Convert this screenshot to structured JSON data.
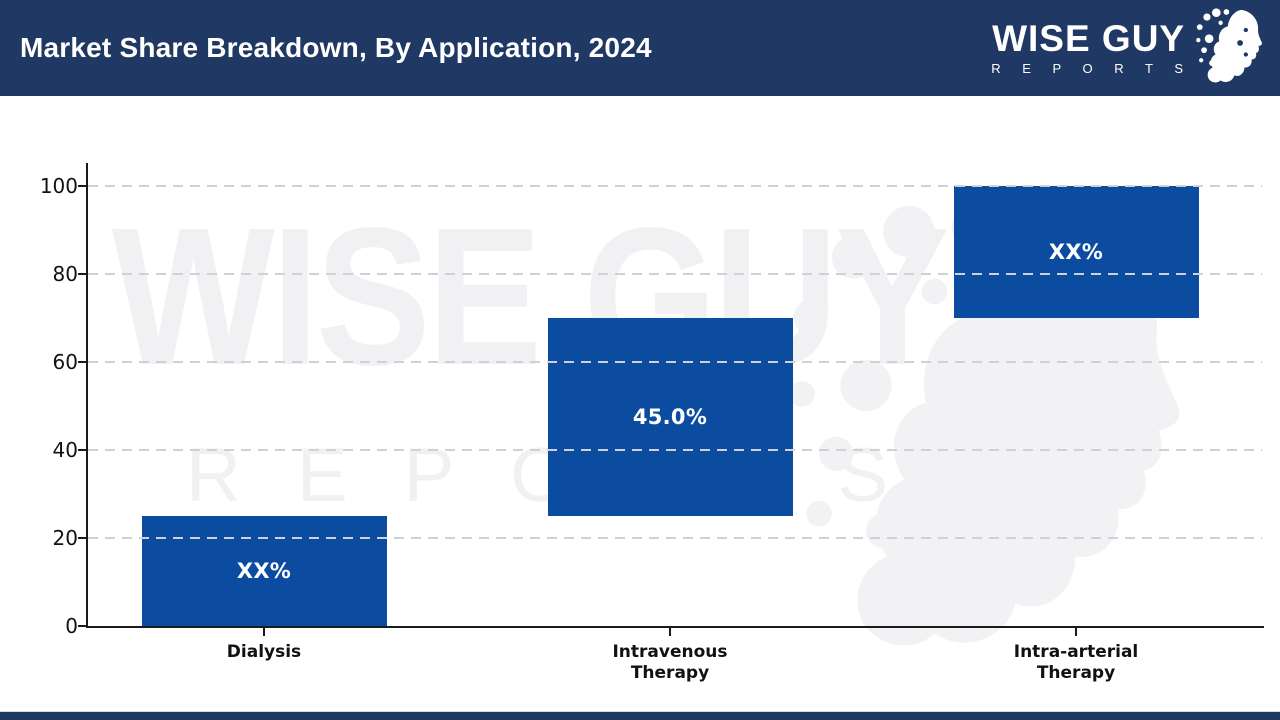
{
  "header": {
    "title": "Market Share Breakdown, By Application, 2024",
    "logo_line1": "WISE GUY",
    "logo_line2": "R E P O R T S"
  },
  "watermark": {
    "line1": "WISE GUY",
    "line2": "REPORTS"
  },
  "colors": {
    "header_bg": "#203864",
    "bar": "#0C4CA0",
    "gridline": "#CDD2D8",
    "axis": "#1A1A1A",
    "watermark": "#F1F1F3",
    "bar_label": "#FFFFFF"
  },
  "chart_data": {
    "type": "bar",
    "subtype": "floating-waterfall",
    "title": "Market Share Breakdown, By Application, 2024",
    "categories": [
      "Dialysis",
      "Intravenous Therapy",
      "Intra-arterial Therapy"
    ],
    "category_lines": [
      [
        "Dialysis"
      ],
      [
        "Intravenous",
        "Therapy"
      ],
      [
        "Intra-arterial",
        "Therapy"
      ]
    ],
    "segments": [
      {
        "category": "Dialysis",
        "start": 0,
        "end": 25,
        "label": "XX%"
      },
      {
        "category": "Intravenous Therapy",
        "start": 25,
        "end": 70,
        "label": "45.0%"
      },
      {
        "category": "Intra-arterial Therapy",
        "start": 70,
        "end": 100,
        "label": "XX%"
      }
    ],
    "bar_labels": [
      "XX%",
      "45.0%",
      "XX%"
    ],
    "yticks": [
      0,
      20,
      40,
      60,
      80,
      100
    ],
    "ylim": [
      0,
      105
    ],
    "xlabel": "",
    "ylabel": "",
    "grid": "horizontal-dashed",
    "legend": "none"
  }
}
